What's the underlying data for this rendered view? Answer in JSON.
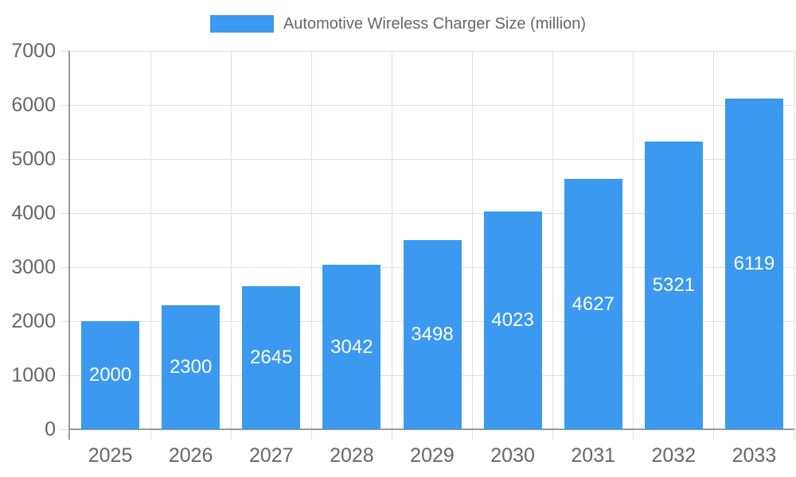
{
  "legend": {
    "label": "Automotive Wireless Charger Size (million)",
    "swatch_color": "#3B99F0"
  },
  "colors": {
    "bar": "#3B99F0",
    "grid": "#E0E0E0",
    "axis": "#9A9A9A",
    "tick_text": "#666666",
    "legend_text": "#666666",
    "value_label_text": "#FFFFFF",
    "background": "#FFFFFF"
  },
  "chart_data": {
    "type": "bar",
    "title": "Automotive Wireless Charger Size (million)",
    "series_name": "Automotive Wireless Charger Size (million)",
    "categories": [
      "2025",
      "2026",
      "2027",
      "2028",
      "2029",
      "2030",
      "2031",
      "2032",
      "2033"
    ],
    "values": [
      2000,
      2300,
      2645,
      3042,
      3498,
      4023,
      4627,
      5321,
      6119
    ],
    "xlabel": "",
    "ylabel": "",
    "ylim": [
      0,
      7000
    ],
    "yticks": [
      0,
      1000,
      2000,
      3000,
      4000,
      5000,
      6000,
      7000
    ],
    "grid": true,
    "legend_position": "top-center",
    "bar_value_labels": "white-centered-inside-bars"
  }
}
